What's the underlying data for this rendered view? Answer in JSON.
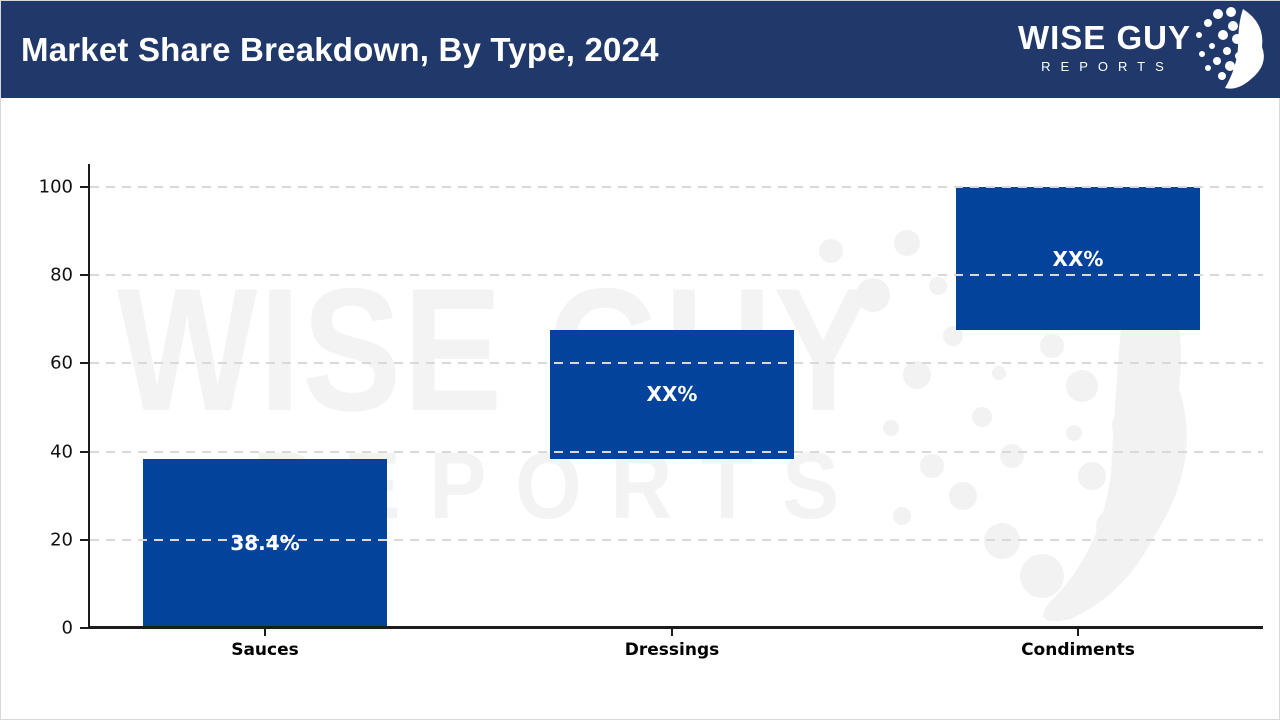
{
  "header": {
    "title": "Market Share Breakdown, By Type, 2024",
    "bg_color": "#21386a",
    "text_color": "#ffffff",
    "logo": {
      "line1": "WISE GUY",
      "line2": "REPORTS",
      "face_icon": "dotted-head-profile"
    }
  },
  "watermark": {
    "line1": "WISE GUY",
    "line2": "REPORTS",
    "color": "#f3f3f3"
  },
  "chart_data": {
    "type": "bar",
    "subtype": "waterfall",
    "title": "Market Share Breakdown, By Type, 2024",
    "categories": [
      "Sauces",
      "Dressings",
      "Condiments"
    ],
    "segments": [
      {
        "category": "Sauces",
        "start": 0,
        "end": 38.4,
        "label": "38.4%"
      },
      {
        "category": "Dressings",
        "start": 38.4,
        "end": 67.5,
        "label": "XX%"
      },
      {
        "category": "Condiments",
        "start": 67.5,
        "end": 100,
        "label": "XX%"
      }
    ],
    "xlabel": "",
    "ylabel": "",
    "ylim": [
      0,
      105
    ],
    "yticks": [
      0,
      20,
      40,
      60,
      80,
      100
    ],
    "grid": "horizontal-dashed",
    "legend": "none",
    "bar_color": "#04439c",
    "bar_label_color": "#ffffff",
    "axis_color": "#1c1c1c",
    "gridline_color": "#d9d9d9"
  }
}
